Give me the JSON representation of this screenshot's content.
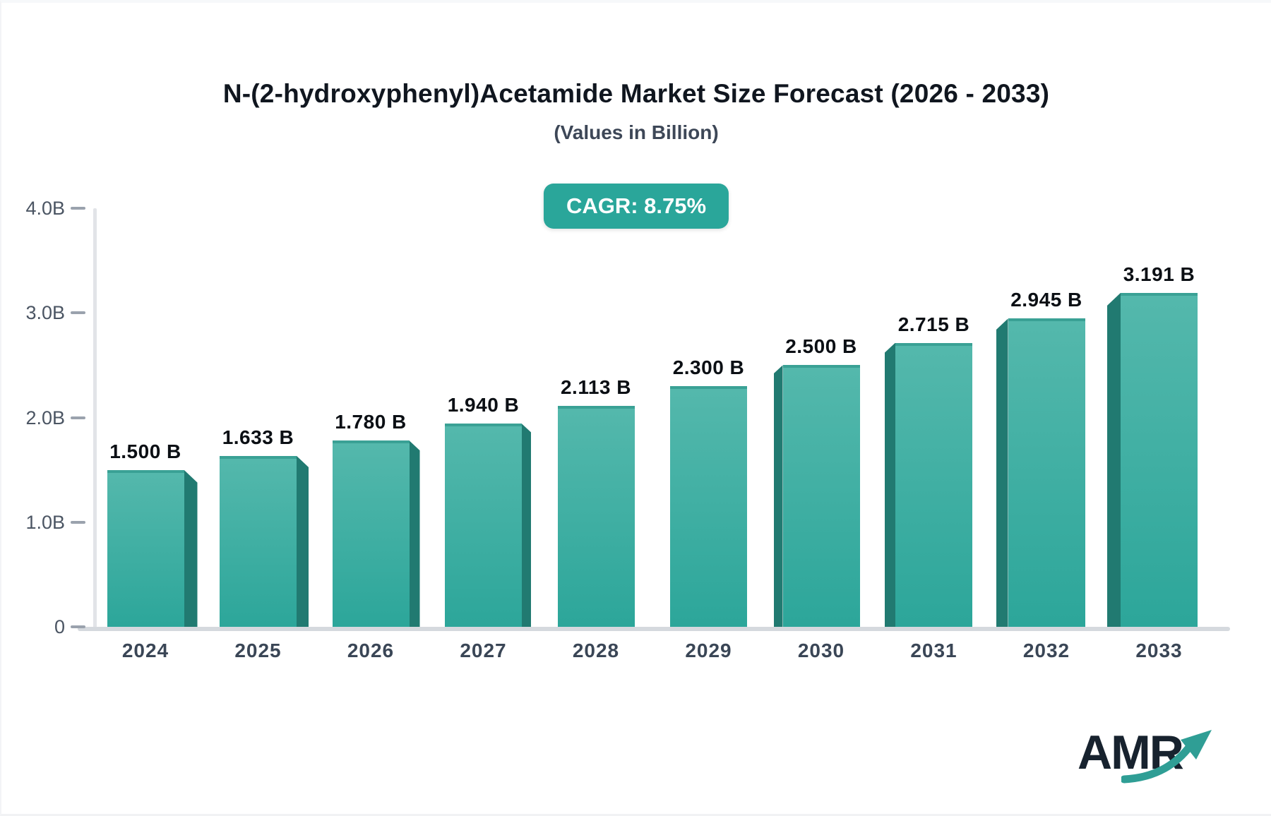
{
  "header": {
    "title": "N-(2-hydroxyphenyl)Acetamide Market Size Forecast (2026 - 2033)",
    "subtitle": "(Values in Billion)"
  },
  "badge": {
    "label": "CAGR: 8.75%",
    "bg_color": "#2aa69a",
    "text_color": "#ffffff"
  },
  "chart_data": {
    "type": "bar",
    "title": "N-(2-hydroxyphenyl)Acetamide Market Size Forecast (2026 - 2033)",
    "subtitle": "(Values in Billion)",
    "unit": "Billion",
    "categories": [
      "2024",
      "2025",
      "2026",
      "2027",
      "2028",
      "2029",
      "2030",
      "2031",
      "2032",
      "2033"
    ],
    "values": [
      1.5,
      1.633,
      1.78,
      1.94,
      2.113,
      2.3,
      2.5,
      2.715,
      2.945,
      3.191
    ],
    "value_labels": [
      "1.500 B",
      "1.633 B",
      "1.780 B",
      "1.940 B",
      "2.113 B",
      "2.300 B",
      "2.500 B",
      "2.715 B",
      "2.945 B",
      "3.191 B"
    ],
    "ylim": [
      0,
      4
    ],
    "y_ticks": [
      "4.0B",
      "3.0B",
      "2.0B",
      "1.0B",
      "0"
    ],
    "grid": false,
    "legend": false,
    "bar_style": {
      "front_top_color": "#54b8ac",
      "front_bottom_color": "#2ca69a",
      "cap_color": "#3aa195",
      "side_color": "#217a71"
    }
  },
  "axes": {
    "label_color": "#4b5563",
    "tick_dash_color": "#9aa2ad",
    "axis_line_color": "#e2e4e8",
    "baseline_color": "#d5d9de"
  },
  "logo": {
    "text": "AMR",
    "text_color": "#17222e",
    "arrow_color": "#2f9e95"
  }
}
